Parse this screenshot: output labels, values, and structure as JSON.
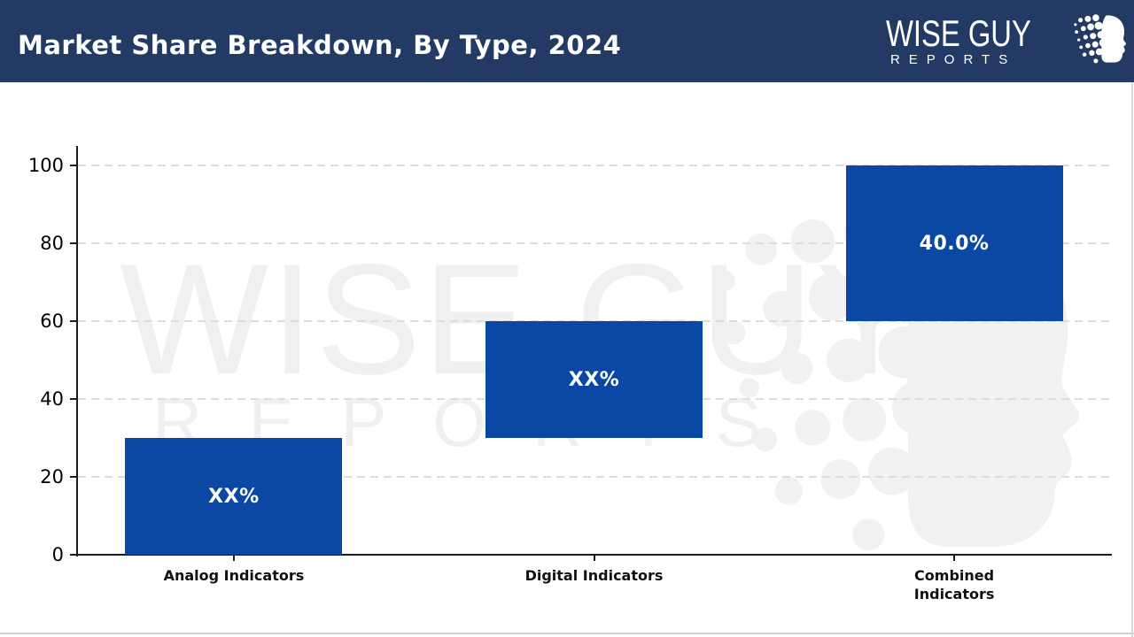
{
  "header": {
    "title": "Market Share Breakdown, By Type, 2024",
    "logo": {
      "name": "WISE GUY",
      "sub": "REPORTS"
    }
  },
  "watermark": {
    "name": "WISE GUY",
    "sub": "REPORTS"
  },
  "chart_data": {
    "type": "bar",
    "subtype": "floating-segment-bars",
    "title": "Market Share Breakdown, By Type, 2024",
    "categories": [
      "Analog Indicators",
      "Digital Indicators",
      "Combined\nIndicators"
    ],
    "bars": [
      {
        "category": "Analog Indicators",
        "start": 0,
        "end": 30,
        "size": 30,
        "label": "XX%"
      },
      {
        "category": "Digital Indicators",
        "start": 30,
        "end": 60,
        "size": 30,
        "label": "XX%"
      },
      {
        "category": "Combined Indicators",
        "start": 60,
        "end": 100,
        "size": 40,
        "label": "40.0%"
      }
    ],
    "yticks": [
      0,
      20,
      40,
      60,
      80,
      100
    ],
    "ylim": [
      0,
      105
    ],
    "xlabel": "",
    "ylabel": "",
    "grid": "dashed-horizontal",
    "legend": "none",
    "colors": {
      "bar": "#0a48a3",
      "bar_label": "#ffffff",
      "grid": "#dcdcdc",
      "axis": "#1a1a1a",
      "header_bg": "#233a64",
      "watermark": "#f0f0f2"
    }
  }
}
